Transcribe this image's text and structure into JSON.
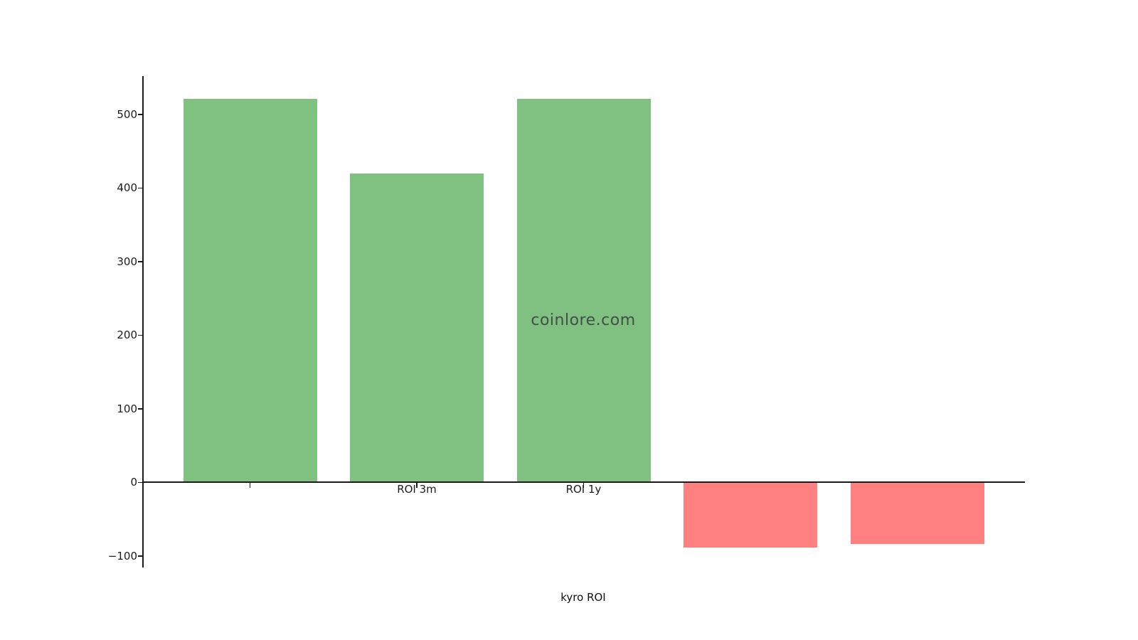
{
  "chart_data": {
    "type": "bar",
    "title": "",
    "xlabel": "kyro ROI",
    "ylabel": "",
    "categories": [
      "",
      "ROI 3m",
      "ROI 1y",
      "",
      ""
    ],
    "values": [
      521,
      420,
      521,
      -88,
      -84
    ],
    "bar_colors": [
      "#80c080",
      "#80c080",
      "#80c080",
      "#ff8080",
      "#ff8080"
    ],
    "positive_color": "#80c080",
    "negative_color": "#ff8080",
    "yticks": [
      500,
      400,
      300,
      200,
      100,
      0,
      -100
    ],
    "ylim": [
      -115,
      552
    ],
    "x_ticks_shown": [
      0,
      1,
      2
    ],
    "grid": false,
    "legend": "none",
    "watermark": "coinlore.com"
  }
}
